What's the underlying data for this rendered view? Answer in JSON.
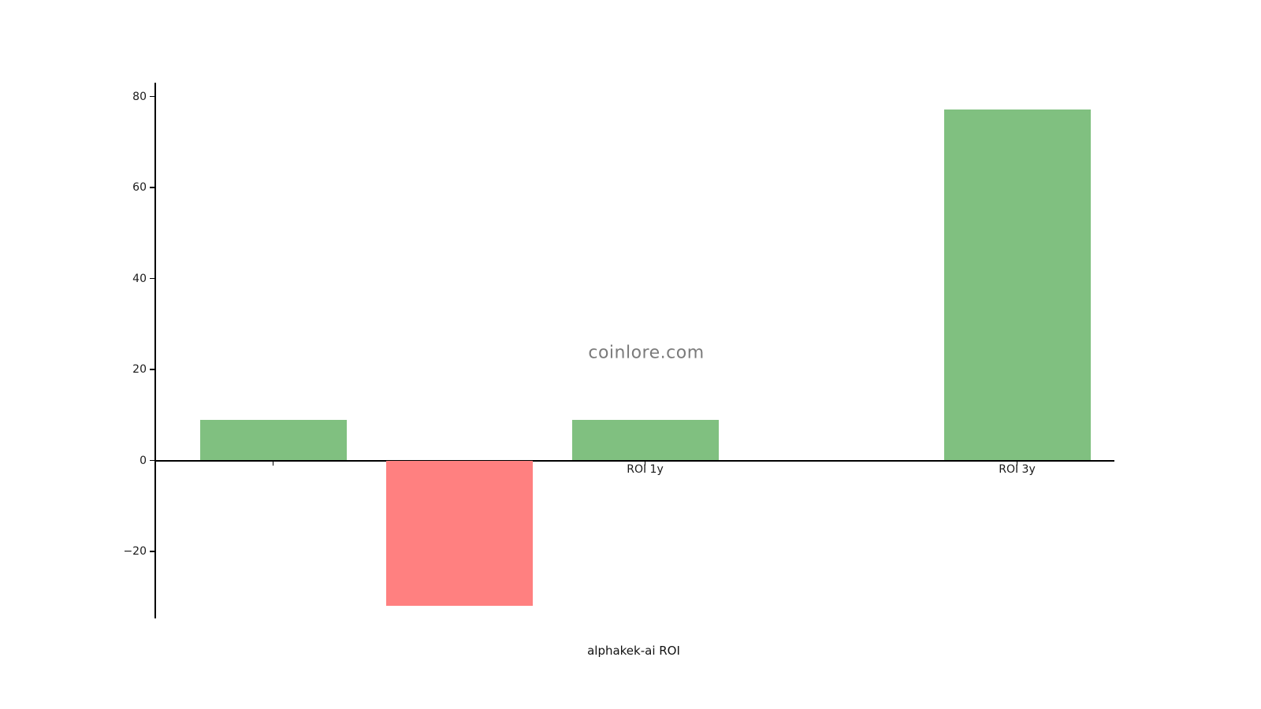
{
  "chart_data": {
    "type": "bar",
    "title": "alphakek-ai ROI",
    "watermark": "coinlore.com",
    "categories": [
      "",
      "",
      "ROI 1y",
      "",
      "ROI 3y"
    ],
    "values": [
      8.9,
      -31.9,
      8.9,
      null,
      77.1
    ],
    "x_ticks_at": [
      0,
      2,
      4
    ],
    "y_ticks": [
      80,
      60,
      40,
      20,
      0,
      -20
    ],
    "ylim": [
      -34.8,
      83
    ],
    "xlabel": "",
    "ylabel": "",
    "grid": false,
    "legend": null,
    "positive_color": "#80c080",
    "negative_color": "#ff8080",
    "background_color": "#ffffff",
    "axis_color": "#000000",
    "tick_label_color": "#1a1a1a",
    "title_color": "#111111",
    "watermark_color": "#7b7b7b"
  }
}
